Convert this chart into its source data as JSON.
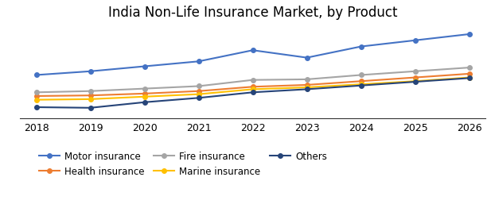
{
  "title": "India Non-Life Insurance Market, by Product",
  "years": [
    2018,
    2019,
    2020,
    2021,
    2022,
    2023,
    2024,
    2025,
    2026
  ],
  "series": {
    "Motor insurance": {
      "values": [
        3.5,
        3.8,
        4.2,
        4.6,
        5.5,
        4.9,
        5.8,
        6.3,
        6.8
      ],
      "color": "#4472C4",
      "marker": "o"
    },
    "Health insurance": {
      "values": [
        1.8,
        1.85,
        2.0,
        2.2,
        2.55,
        2.7,
        3.0,
        3.3,
        3.6
      ],
      "color": "#ED7D31",
      "marker": "o"
    },
    "Fire insurance": {
      "values": [
        2.1,
        2.2,
        2.4,
        2.6,
        3.1,
        3.15,
        3.5,
        3.8,
        4.1
      ],
      "color": "#A5A5A5",
      "marker": "o"
    },
    "Marine insurance": {
      "values": [
        1.5,
        1.55,
        1.75,
        1.95,
        2.35,
        2.5,
        2.75,
        3.0,
        3.3
      ],
      "color": "#FFC000",
      "marker": "o"
    },
    "Others": {
      "values": [
        0.9,
        0.85,
        1.3,
        1.65,
        2.1,
        2.35,
        2.65,
        2.95,
        3.25
      ],
      "color": "#264478",
      "marker": "o"
    }
  },
  "ylim": [
    0,
    7.5
  ],
  "background_color": "#FFFFFF",
  "title_fontsize": 12,
  "tick_fontsize": 9,
  "legend_fontsize": 8.5
}
